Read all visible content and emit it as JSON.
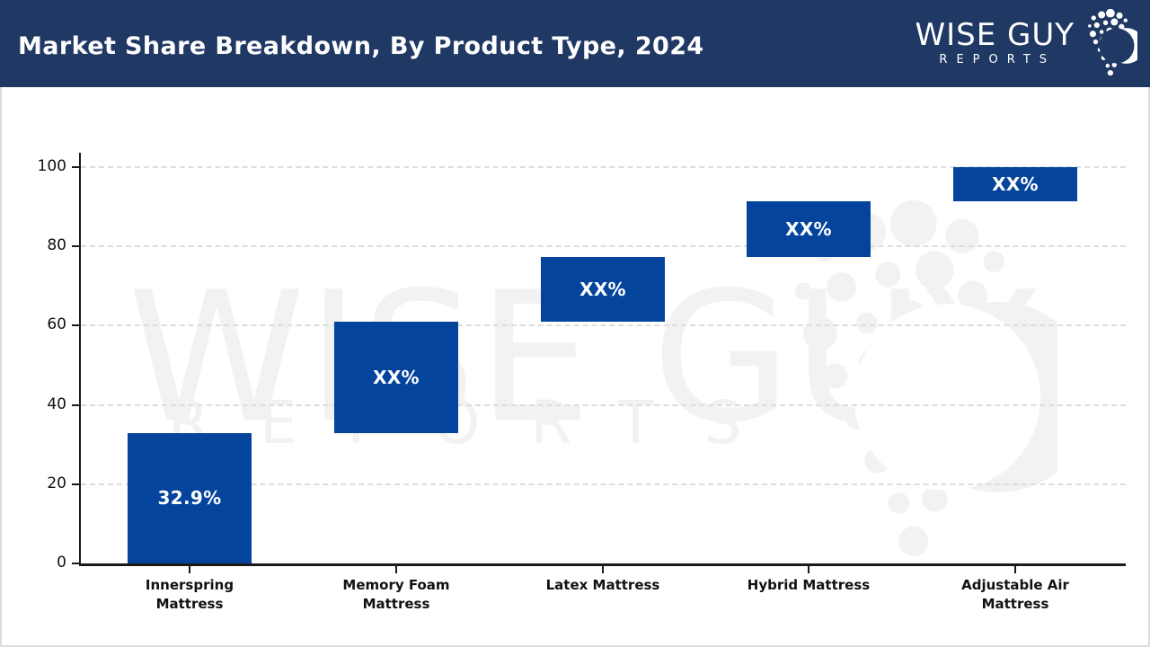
{
  "header": {
    "title": "Market Share Breakdown, By Product Type, 2024",
    "logo": {
      "line1": "WISE GUY",
      "line2": "REPORTS"
    }
  },
  "watermark": {
    "line1": "WISE GUY",
    "line2": "REPORTS"
  },
  "colors": {
    "header_bg": "#1F3864",
    "bar": "#04449C",
    "grid": "#DDDDDD",
    "axis": "#1A1A1A",
    "bar_label": "#FFFFFF",
    "watermark": "#F2F2F2"
  },
  "chart_data": {
    "type": "bar",
    "subtype": "floating-waterfall",
    "title": "Market Share Breakdown, By Product Type, 2024",
    "categories": [
      "Innerspring\nMattress",
      "Memory Foam\nMattress",
      "Latex Mattress",
      "Hybrid Mattress",
      "Adjustable Air\nMattress"
    ],
    "series": [
      {
        "name": "Market Share (%)",
        "segments": [
          {
            "category": "Innerspring Mattress",
            "start": 0,
            "end": 32.9,
            "label": "32.9%"
          },
          {
            "category": "Memory Foam Mattress",
            "start": 32.9,
            "end": 61.0,
            "label": "XX%"
          },
          {
            "category": "Latex Mattress",
            "start": 61.0,
            "end": 77.3,
            "label": "XX%"
          },
          {
            "category": "Hybrid Mattress",
            "start": 77.3,
            "end": 91.4,
            "label": "XX%"
          },
          {
            "category": "Adjustable Air Mattress",
            "start": 91.4,
            "end": 100,
            "label": "XX%"
          }
        ]
      }
    ],
    "xlabel": "",
    "ylabel": "",
    "ylim": [
      0,
      105
    ],
    "yticks": [
      0,
      20,
      40,
      60,
      80,
      100
    ],
    "grid": "horizontal-dashed",
    "legend": "none",
    "bar_color": "#04449C"
  }
}
